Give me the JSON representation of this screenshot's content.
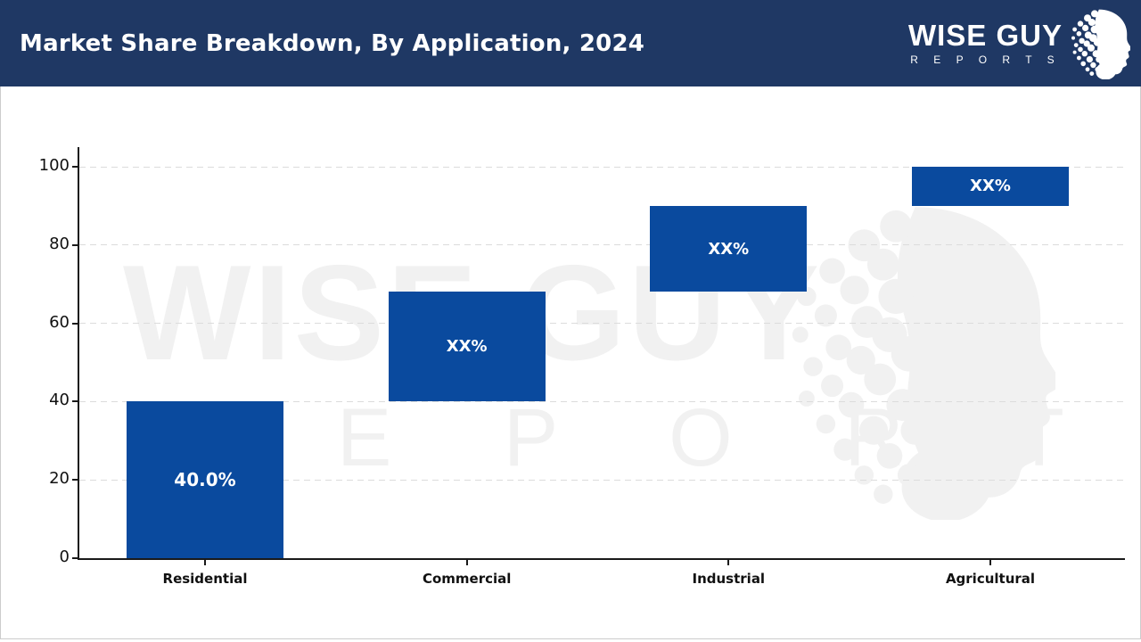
{
  "header": {
    "title": "Market Share Breakdown, By Application, 2024",
    "logo_line1": "WISE GUY",
    "logo_line2": "R E P O R T S"
  },
  "watermark": {
    "line1": "WISE GUY",
    "line2": "R E P O R T S"
  },
  "colors": {
    "header_bg": "#1F3864",
    "bar": "#0A4A9E",
    "bar_label": "#FFFFFF",
    "grid": "#DCDCDC",
    "axis": "#1A1A1A",
    "watermark": "#F1F1F1"
  },
  "chart_data": {
    "type": "bar",
    "variant": "floating-segment waterfall of market share",
    "title": "Market Share Breakdown, By Application, 2024",
    "categories": [
      "Residential",
      "Commercial",
      "Industrial",
      "Agricultural"
    ],
    "series": [
      {
        "name": "Market share (%)",
        "segment_start": [
          0,
          40,
          68,
          90
        ],
        "segment_end": [
          40,
          68,
          90,
          100
        ],
        "values": [
          40,
          28,
          22,
          10
        ]
      }
    ],
    "bar_labels": [
      "40.0%",
      "XX%",
      "XX%",
      "XX%"
    ],
    "xlabel": "",
    "ylabel": "",
    "ylim": [
      0,
      105
    ],
    "yticks": [
      0,
      20,
      40,
      60,
      80,
      100
    ],
    "grid": "horizontal dashed",
    "legend": "none",
    "bar_color": "#0A4A9E",
    "label_color": "#FFFFFF"
  }
}
